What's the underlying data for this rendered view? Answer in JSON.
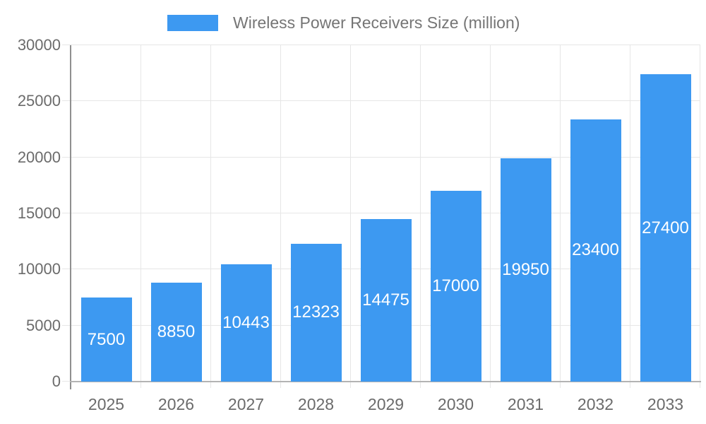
{
  "chart_data": {
    "type": "bar",
    "title": "Wireless Power Receivers Size (million)",
    "legend": {
      "position": "top",
      "label": "Wireless Power Receivers Size (million)"
    },
    "categories": [
      "2025",
      "2026",
      "2027",
      "2028",
      "2029",
      "2030",
      "2031",
      "2032",
      "2033"
    ],
    "series": [
      {
        "name": "Wireless Power Receivers Size (million)",
        "values": [
          7500,
          8850,
          10443,
          12323,
          14475,
          17000,
          19950,
          23400,
          27400
        ]
      }
    ],
    "value_labels_shown": true,
    "value_label_position": "center-of-bar",
    "xlabel": "",
    "ylabel": "",
    "ylim": [
      0,
      30000
    ],
    "yticks": [
      0,
      5000,
      10000,
      15000,
      20000,
      25000,
      30000
    ],
    "grid": true,
    "vertical_gridlines": true,
    "colors": {
      "bar": "#3D99F1",
      "bar_value_text": "#FFFFFF",
      "title_text": "#757575",
      "axis_text": "#6B6B6B",
      "gridline": "#E6E6E6",
      "baseline": "#B3B3B3",
      "axis_line": "#8F8F8F",
      "background": "#FFFFFF"
    }
  }
}
